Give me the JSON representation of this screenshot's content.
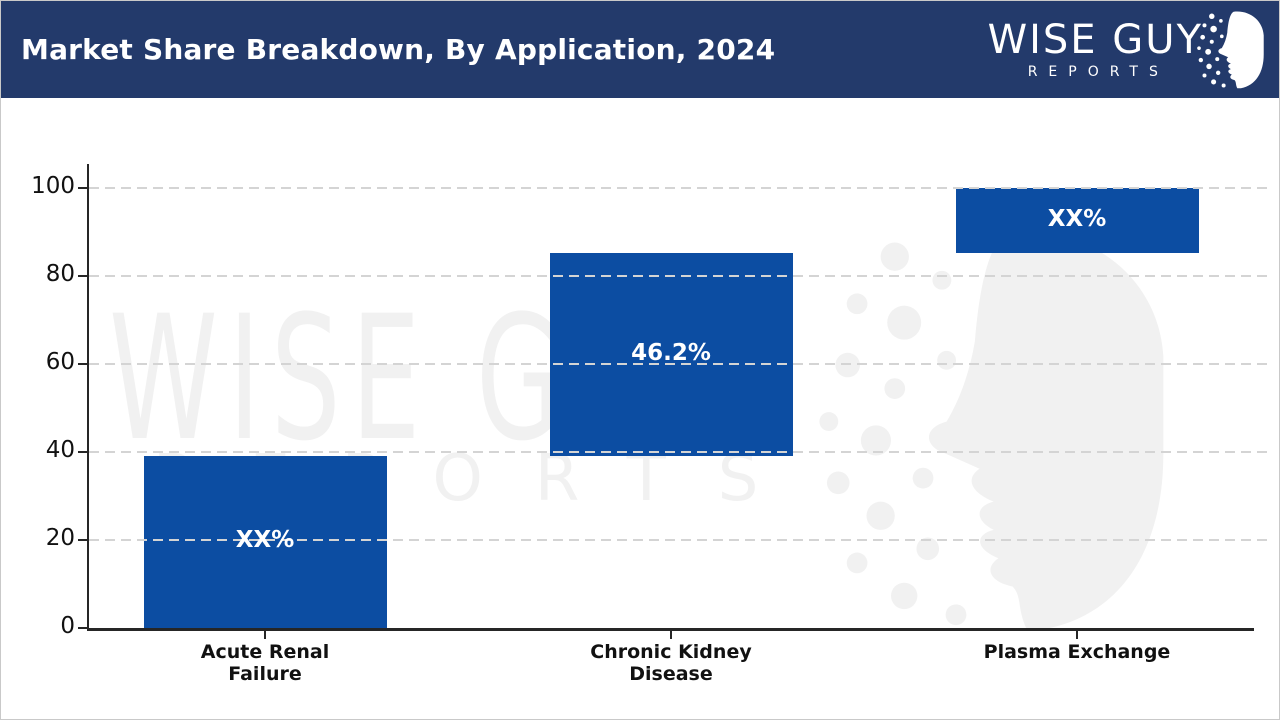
{
  "header": {
    "title": "Market Share Breakdown, By Application, 2024",
    "logo": {
      "name": "WISE GUY",
      "subtitle": "REPORTS"
    }
  },
  "watermark": {
    "name": "WISE GUY",
    "subtitle": "REPORTS"
  },
  "chart_data": {
    "type": "bar",
    "subtype": "waterfall",
    "title": "Market Share Breakdown, By Application, 2024",
    "categories": [
      "Acute Renal Failure",
      "Chronic Kidney Disease",
      "Plasma Exchange"
    ],
    "category_lines": [
      [
        "Acute Renal",
        "Failure"
      ],
      [
        "Chronic Kidney",
        "Disease"
      ],
      [
        "Plasma Exchange"
      ]
    ],
    "bars": [
      {
        "start": 0,
        "end": 39,
        "label": "XX%"
      },
      {
        "start": 39,
        "end": 85.2,
        "label": "46.2%"
      },
      {
        "start": 85.2,
        "end": 100,
        "label": "XX%"
      }
    ],
    "ylim": [
      0,
      100
    ],
    "yticks": [
      0,
      20,
      40,
      60,
      80,
      100
    ],
    "grid": "horizontal-dashed",
    "legend": "none",
    "colors": {
      "bar": "#0C4DA2",
      "bar_label": "#FFFFFF",
      "grid": "#D4D4D4",
      "axis": "#262626",
      "header_bg": "#233A6B",
      "watermark": "#F1F1F1"
    }
  }
}
